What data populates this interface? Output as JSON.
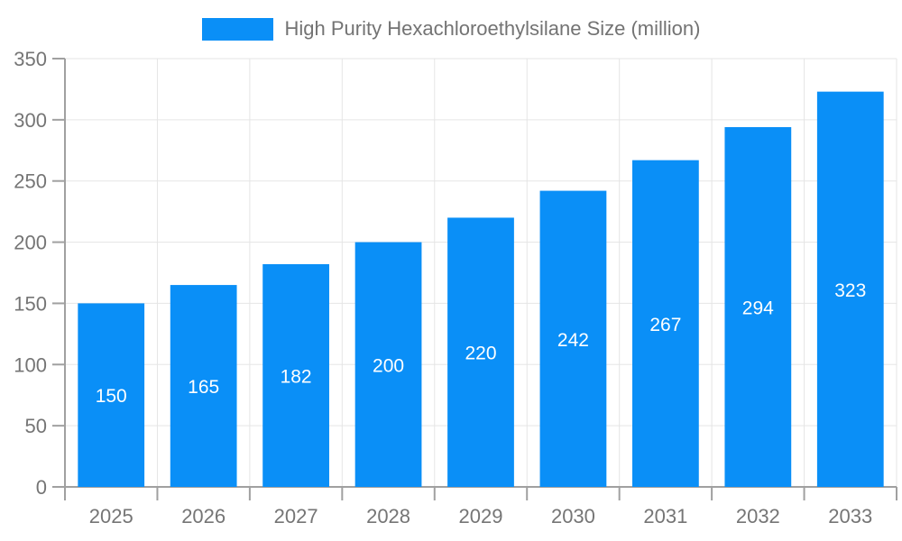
{
  "legend": {
    "label": "High Purity Hexachloroethylsilane Size (million)"
  },
  "chart_data": {
    "type": "bar",
    "title": "High Purity Hexachloroethylsilane Size (million)",
    "categories": [
      "2025",
      "2026",
      "2027",
      "2028",
      "2029",
      "2030",
      "2031",
      "2032",
      "2033"
    ],
    "values": [
      150,
      165,
      182,
      200,
      220,
      242,
      267,
      294,
      323
    ],
    "xlabel": "",
    "ylabel": "",
    "ylim": [
      0,
      350
    ],
    "ytick_step": 50,
    "ytick_labels": [
      "0",
      "50",
      "100",
      "150",
      "200",
      "250",
      "300",
      "350"
    ],
    "grid": true,
    "legend_position": "top-center",
    "value_labels_inside_bars": true,
    "colors": {
      "bar": "#0a8ff7",
      "value_label": "#ffffff",
      "axis": "#a0a0a0",
      "grid": "#e5e5e5",
      "tick_label": "#757575",
      "legend_text": "#737373"
    }
  }
}
